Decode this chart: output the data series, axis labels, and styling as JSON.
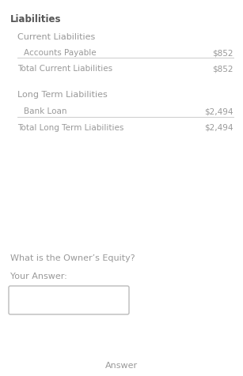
{
  "bg_color": "#ffffff",
  "text_color": "#999999",
  "bold_color": "#555555",
  "title": "Liabilities",
  "section1_header": "Current Liabilities",
  "item1_label": "Accounts Payable",
  "item1_value": "$852",
  "total1_label": "Total Current Liabilities",
  "total1_value": "$852",
  "section2_header": "Long Term Liabilities",
  "item2_label": "Bank Loan",
  "item2_value": "$2,494",
  "total2_label": "Total Long Term Liabilities",
  "total2_value": "$2,494",
  "question": "What is the Owner’s Equity?",
  "answer_label": "Your Answer:",
  "button_label": "Answer",
  "fig_width": 3.07,
  "fig_height": 4.77,
  "dpi": 100
}
